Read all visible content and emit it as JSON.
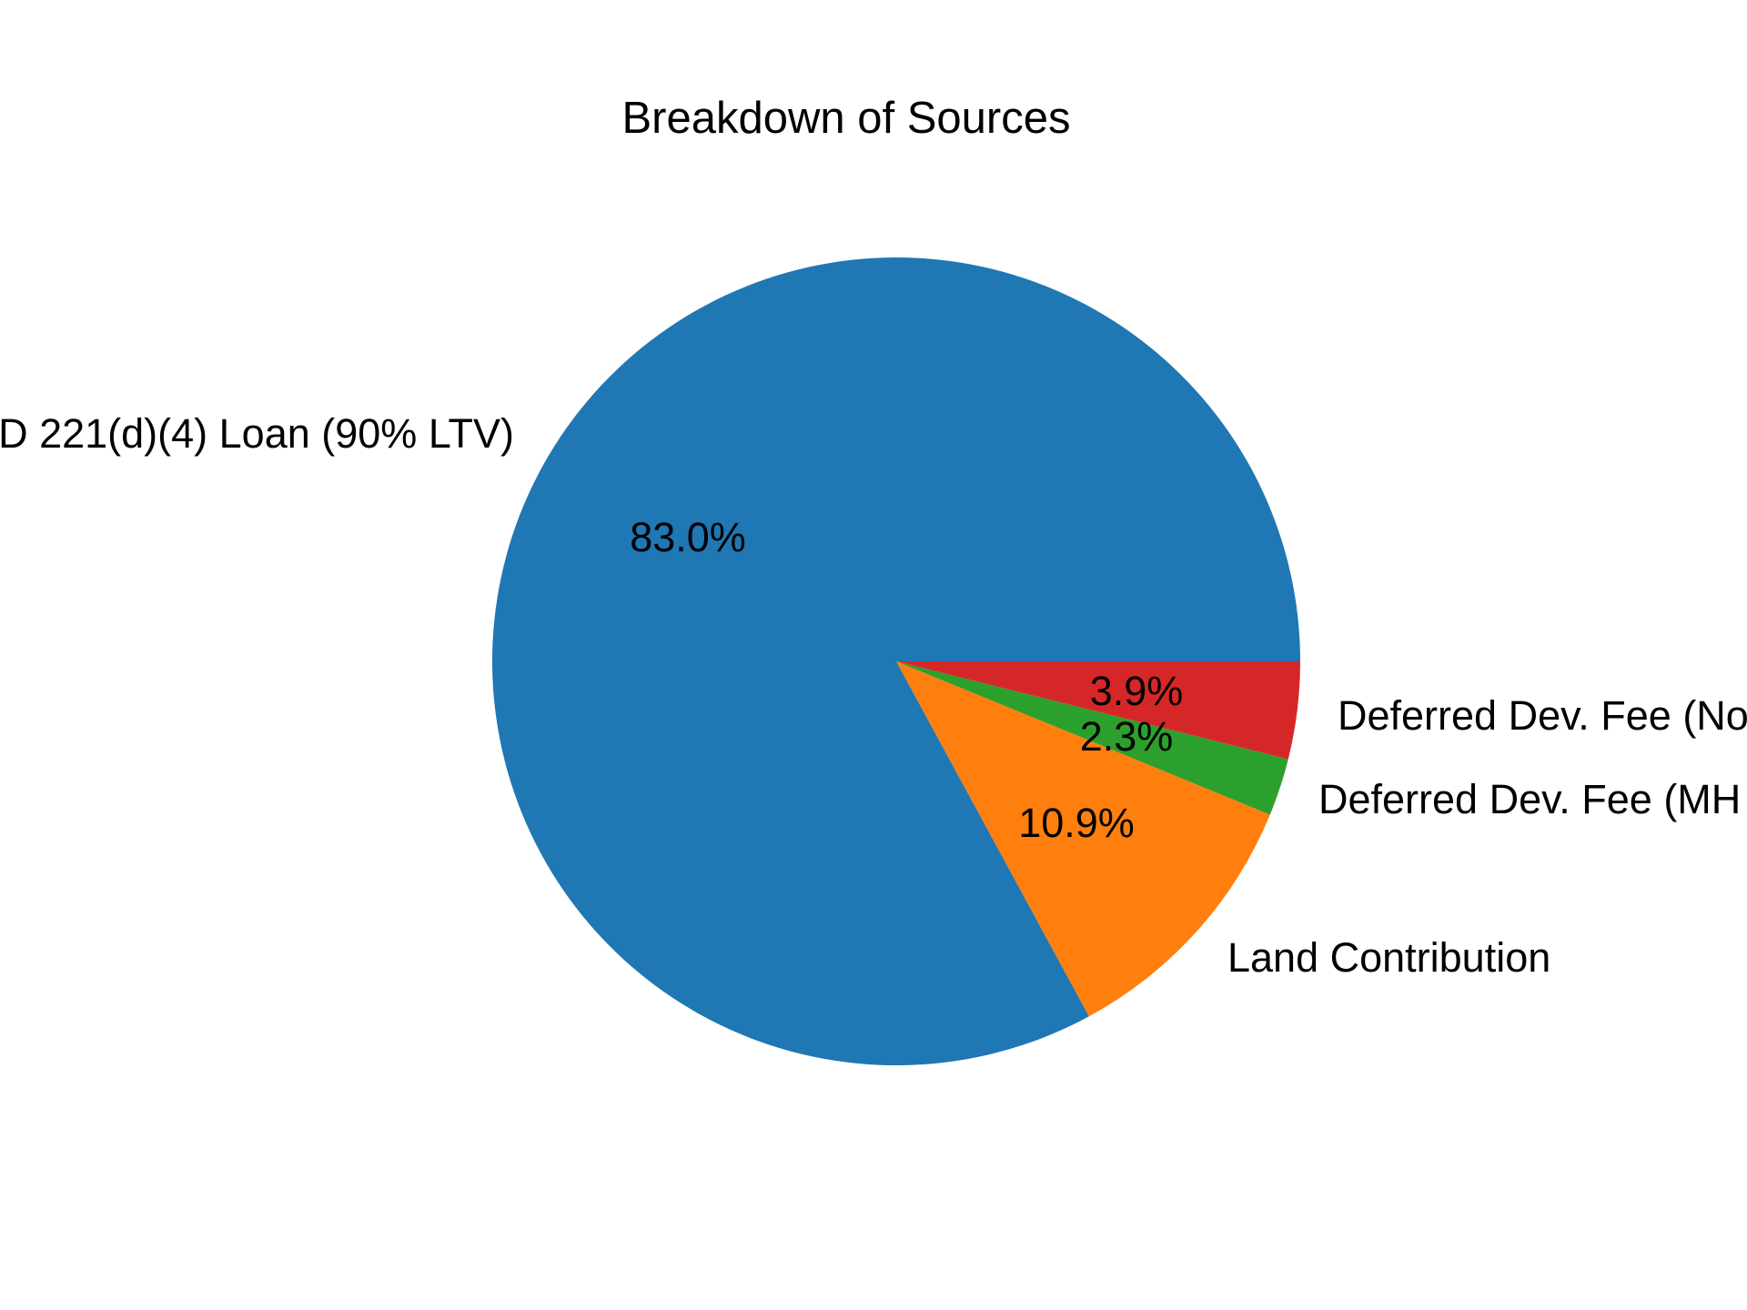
{
  "chart_data": {
    "type": "pie",
    "title": "Breakdown of Sources",
    "slices": [
      {
        "label": "D 221(d)(4) Loan (90% LTV)",
        "value": 83.0,
        "pct_label": "83.0%",
        "color": "#1f77b4"
      },
      {
        "label": "Land Contribution",
        "value": 10.9,
        "pct_label": "10.9%",
        "color": "#ff7f0e"
      },
      {
        "label": "Deferred Dev. Fee (MH",
        "value": 2.3,
        "pct_label": "2.3%",
        "color": "#2ca02c"
      },
      {
        "label": "Deferred Dev. Fee (No",
        "value": 3.9,
        "pct_label": "3.9%",
        "color": "#d62728"
      }
    ],
    "layout": {
      "start_angle_deg": 0,
      "counterclock": true,
      "pct_distance": 0.6,
      "label_distance": 1.1,
      "legend": "none",
      "grid": "off",
      "background": "#ffffff",
      "text_color": "#000000"
    }
  }
}
